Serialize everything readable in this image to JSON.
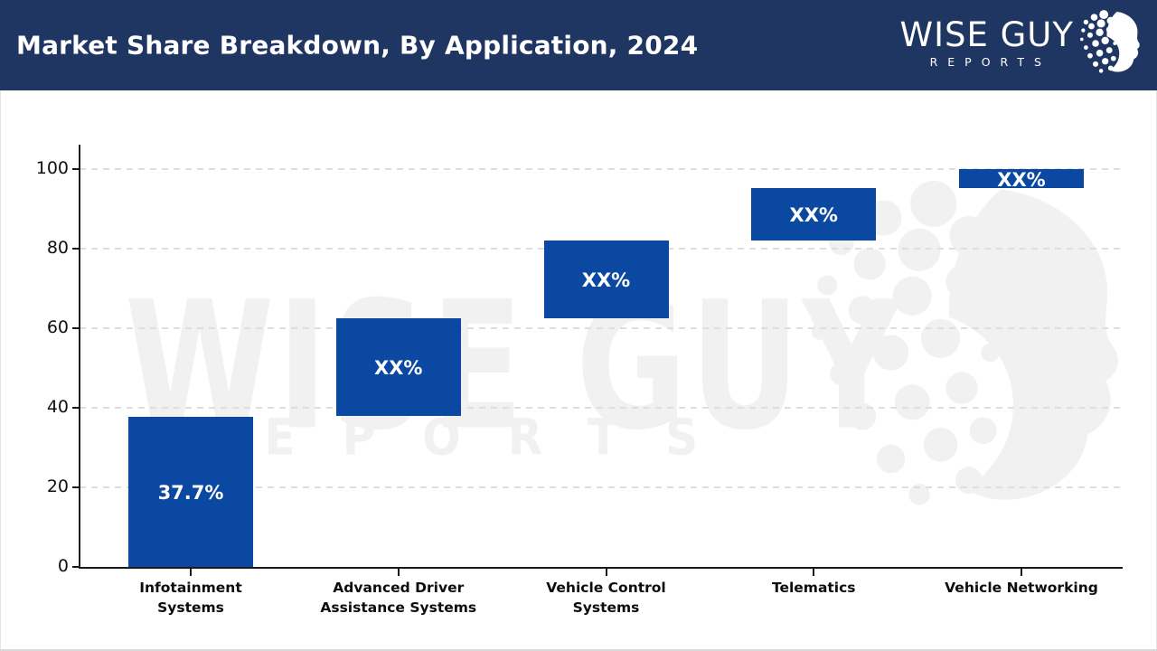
{
  "header": {
    "title": "Market Share Breakdown, By Application, 2024",
    "background_color": "#1f3562",
    "logo": {
      "line1": "WISE GUY",
      "line2": "REPORTS",
      "icon": "dotted-head-profile"
    }
  },
  "watermark": {
    "line1": "WISE GUY",
    "line2": "REPORTS",
    "icon": "dotted-head-profile",
    "color": "#f1f1f1"
  },
  "chart_data": {
    "type": "bar",
    "subtype": "floating-segment waterfall of market share",
    "title": "Market Share Breakdown, By Application, 2024",
    "categories": [
      "Infotainment\nSystems",
      "Advanced Driver\nAssistance Systems",
      "Vehicle Control\nSystems",
      "Telematics",
      "Vehicle Networking"
    ],
    "series": [
      {
        "name": "Market share (%)",
        "segments": [
          {
            "category": "Infotainment Systems",
            "start": 0,
            "end": 37.7,
            "label": "37.7%"
          },
          {
            "category": "Advanced Driver Assistance Systems",
            "start": 38,
            "end": 62.5,
            "label": "XX%"
          },
          {
            "category": "Vehicle Control Systems",
            "start": 62.5,
            "end": 82,
            "label": "XX%"
          },
          {
            "category": "Telematics",
            "start": 82,
            "end": 95.2,
            "label": "XX%"
          },
          {
            "category": "Vehicle Networking",
            "start": 95.2,
            "end": 100,
            "label": "XX%"
          }
        ]
      }
    ],
    "bar_color": "#0b48a2",
    "bar_label_color": "#ffffff",
    "yticks": [
      0,
      20,
      40,
      60,
      80,
      100
    ],
    "ytick_labels": [
      "0",
      "20",
      "40",
      "60",
      "80",
      "100"
    ],
    "ylim": [
      0,
      106
    ],
    "xlabel": "",
    "ylabel": "",
    "grid": "horizontal dashed light-gray",
    "legend": "none",
    "axis_color": "#1a1a1a"
  }
}
